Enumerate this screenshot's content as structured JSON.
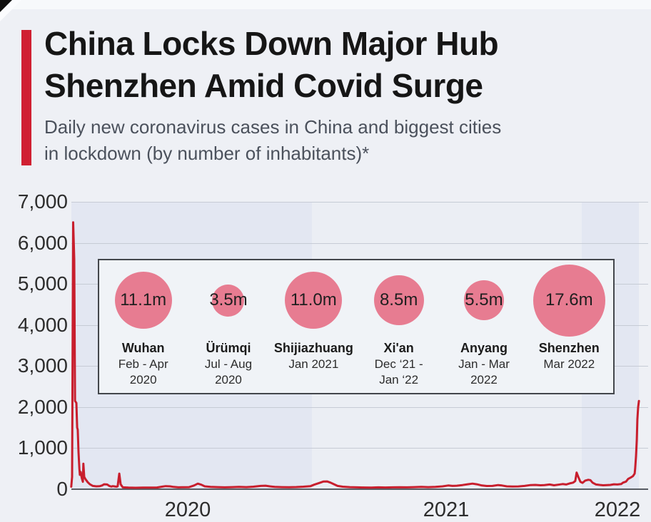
{
  "page": {
    "background": "#eef0f5"
  },
  "header": {
    "title_line1": "China Locks Down Major Hub",
    "title_line2": "Shenzhen Amid Covid Surge",
    "subtitle_line1": "Daily new coronavirus cases in China and biggest cities",
    "subtitle_line2": "in lockdown (by number of inhabitants)*",
    "accent_color": "#d02032"
  },
  "legend_cities": [
    {
      "name": "Wuhan",
      "population_label": "11.1m",
      "population_m": 11.1,
      "period_lines": [
        "Feb - Apr",
        "2020"
      ]
    },
    {
      "name": "Ürümqi",
      "population_label": "3.5m",
      "population_m": 3.5,
      "period_lines": [
        "Jul - Aug",
        "2020"
      ]
    },
    {
      "name": "Shijiazhuang",
      "population_label": "11.0m",
      "population_m": 11.0,
      "period_lines": [
        "Jan 2021"
      ]
    },
    {
      "name": "Xi'an",
      "population_label": "8.5m",
      "population_m": 8.5,
      "period_lines": [
        "Dec ‘21 -",
        "Jan ‘22"
      ]
    },
    {
      "name": "Anyang",
      "population_label": "5.5m",
      "population_m": 5.5,
      "period_lines": [
        "Jan - Mar",
        "2022"
      ]
    },
    {
      "name": "Shenzhen",
      "population_label": "17.6m",
      "population_m": 17.6,
      "period_lines": [
        "Mar 2022"
      ]
    }
  ],
  "chart_data": {
    "type": "line",
    "title": "Daily new coronavirus cases in China",
    "xlabel": "",
    "ylabel": "",
    "ylim": [
      0,
      7000
    ],
    "grid": true,
    "y_tick_values": [
      7000,
      6000,
      5000,
      4000,
      3000,
      2000,
      1000,
      0
    ],
    "y_ticks": [
      "7,000",
      "6,000",
      "5,000",
      "4,000",
      "3,000",
      "2,000",
      "1,000",
      "0"
    ],
    "x_ticks": [
      "2020",
      "2021",
      "2022"
    ],
    "x_range_years": [
      2020.108,
      2022.212
    ],
    "year_bands": [
      {
        "label": "2020",
        "from": 2020.108,
        "to": 2021.0,
        "shade": "dark"
      },
      {
        "label": "2021",
        "from": 2021.0,
        "to": 2022.0,
        "shade": "light"
      },
      {
        "label": "2022",
        "from": 2022.0,
        "to": 2022.212,
        "shade": "dark"
      }
    ],
    "line_color": "#c81e2d",
    "bubble_color": "#e77c91",
    "series": [
      {
        "name": "Daily new cases",
        "points": [
          [
            2020.108,
            60
          ],
          [
            2020.111,
            300
          ],
          [
            2020.115,
            6500
          ],
          [
            2020.119,
            5600
          ],
          [
            2020.122,
            2150
          ],
          [
            2020.127,
            2100
          ],
          [
            2020.13,
            1500
          ],
          [
            2020.132,
            1450
          ],
          [
            2020.135,
            900
          ],
          [
            2020.138,
            500
          ],
          [
            2020.14,
            350
          ],
          [
            2020.143,
            420
          ],
          [
            2020.146,
            300
          ],
          [
            2020.148,
            250
          ],
          [
            2020.151,
            180
          ],
          [
            2020.153,
            620
          ],
          [
            2020.156,
            300
          ],
          [
            2020.161,
            240
          ],
          [
            2020.169,
            170
          ],
          [
            2020.177,
            120
          ],
          [
            2020.188,
            80
          ],
          [
            2020.201,
            70
          ],
          [
            2020.214,
            75
          ],
          [
            2020.222,
            90
          ],
          [
            2020.23,
            120
          ],
          [
            2020.241,
            115
          ],
          [
            2020.249,
            80
          ],
          [
            2020.257,
            65
          ],
          [
            2020.262,
            75
          ],
          [
            2020.267,
            70
          ],
          [
            2020.275,
            60
          ],
          [
            2020.28,
            70
          ],
          [
            2020.286,
            380
          ],
          [
            2020.291,
            120
          ],
          [
            2020.299,
            45
          ],
          [
            2020.32,
            38
          ],
          [
            2020.347,
            35
          ],
          [
            2020.373,
            38
          ],
          [
            2020.399,
            40
          ],
          [
            2020.426,
            42
          ],
          [
            2020.444,
            60
          ],
          [
            2020.458,
            75
          ],
          [
            2020.474,
            70
          ],
          [
            2020.487,
            55
          ],
          [
            2020.505,
            45
          ],
          [
            2020.526,
            48
          ],
          [
            2020.545,
            50
          ],
          [
            2020.563,
            90
          ],
          [
            2020.577,
            135
          ],
          [
            2020.59,
            110
          ],
          [
            2020.603,
            70
          ],
          [
            2020.624,
            55
          ],
          [
            2020.651,
            50
          ],
          [
            2020.677,
            45
          ],
          [
            2020.704,
            50
          ],
          [
            2020.73,
            55
          ],
          [
            2020.757,
            50
          ],
          [
            2020.783,
            60
          ],
          [
            2020.81,
            80
          ],
          [
            2020.828,
            85
          ],
          [
            2020.844,
            70
          ],
          [
            2020.862,
            55
          ],
          [
            2020.889,
            50
          ],
          [
            2020.915,
            48
          ],
          [
            2020.942,
            52
          ],
          [
            2020.968,
            60
          ],
          [
            2020.995,
            75
          ],
          [
            2021.008,
            110
          ],
          [
            2021.026,
            150
          ],
          [
            2021.042,
            185
          ],
          [
            2021.056,
            190
          ],
          [
            2021.069,
            160
          ],
          [
            2021.082,
            120
          ],
          [
            2021.095,
            80
          ],
          [
            2021.114,
            60
          ],
          [
            2021.14,
            50
          ],
          [
            2021.167,
            45
          ],
          [
            2021.193,
            42
          ],
          [
            2021.22,
            40
          ],
          [
            2021.246,
            45
          ],
          [
            2021.272,
            42
          ],
          [
            2021.299,
            45
          ],
          [
            2021.325,
            48
          ],
          [
            2021.352,
            45
          ],
          [
            2021.378,
            50
          ],
          [
            2021.405,
            55
          ],
          [
            2021.431,
            50
          ],
          [
            2021.458,
            55
          ],
          [
            2021.484,
            70
          ],
          [
            2021.505,
            90
          ],
          [
            2021.521,
            80
          ],
          [
            2021.537,
            85
          ],
          [
            2021.558,
            100
          ],
          [
            2021.577,
            120
          ],
          [
            2021.595,
            135
          ],
          [
            2021.611,
            120
          ],
          [
            2021.63,
            90
          ],
          [
            2021.648,
            78
          ],
          [
            2021.669,
            80
          ],
          [
            2021.69,
            100
          ],
          [
            2021.704,
            90
          ],
          [
            2021.722,
            70
          ],
          [
            2021.743,
            65
          ],
          [
            2021.765,
            68
          ],
          [
            2021.788,
            80
          ],
          [
            2021.81,
            100
          ],
          [
            2021.828,
            105
          ],
          [
            2021.847,
            95
          ],
          [
            2021.862,
            100
          ],
          [
            2021.881,
            115
          ],
          [
            2021.897,
            95
          ],
          [
            2021.913,
            110
          ],
          [
            2021.929,
            125
          ],
          [
            2021.942,
            115
          ],
          [
            2021.955,
            140
          ],
          [
            2021.968,
            160
          ],
          [
            2021.976,
            200
          ],
          [
            2021.981,
            405
          ],
          [
            2021.987,
            300
          ],
          [
            2021.995,
            180
          ],
          [
            2022.003,
            155
          ],
          [
            2022.013,
            210
          ],
          [
            2022.024,
            230
          ],
          [
            2022.032,
            220
          ],
          [
            2022.04,
            160
          ],
          [
            2022.053,
            115
          ],
          [
            2022.066,
            105
          ],
          [
            2022.079,
            95
          ],
          [
            2022.093,
            100
          ],
          [
            2022.106,
            105
          ],
          [
            2022.119,
            120
          ],
          [
            2022.132,
            115
          ],
          [
            2022.146,
            125
          ],
          [
            2022.153,
            160
          ],
          [
            2022.164,
            185
          ],
          [
            2022.172,
            250
          ],
          [
            2022.183,
            290
          ],
          [
            2022.19,
            320
          ],
          [
            2022.196,
            380
          ],
          [
            2022.198,
            500
          ],
          [
            2022.201,
            800
          ],
          [
            2022.204,
            1200
          ],
          [
            2022.206,
            1700
          ],
          [
            2022.209,
            2000
          ],
          [
            2022.212,
            2150
          ]
        ]
      }
    ]
  }
}
